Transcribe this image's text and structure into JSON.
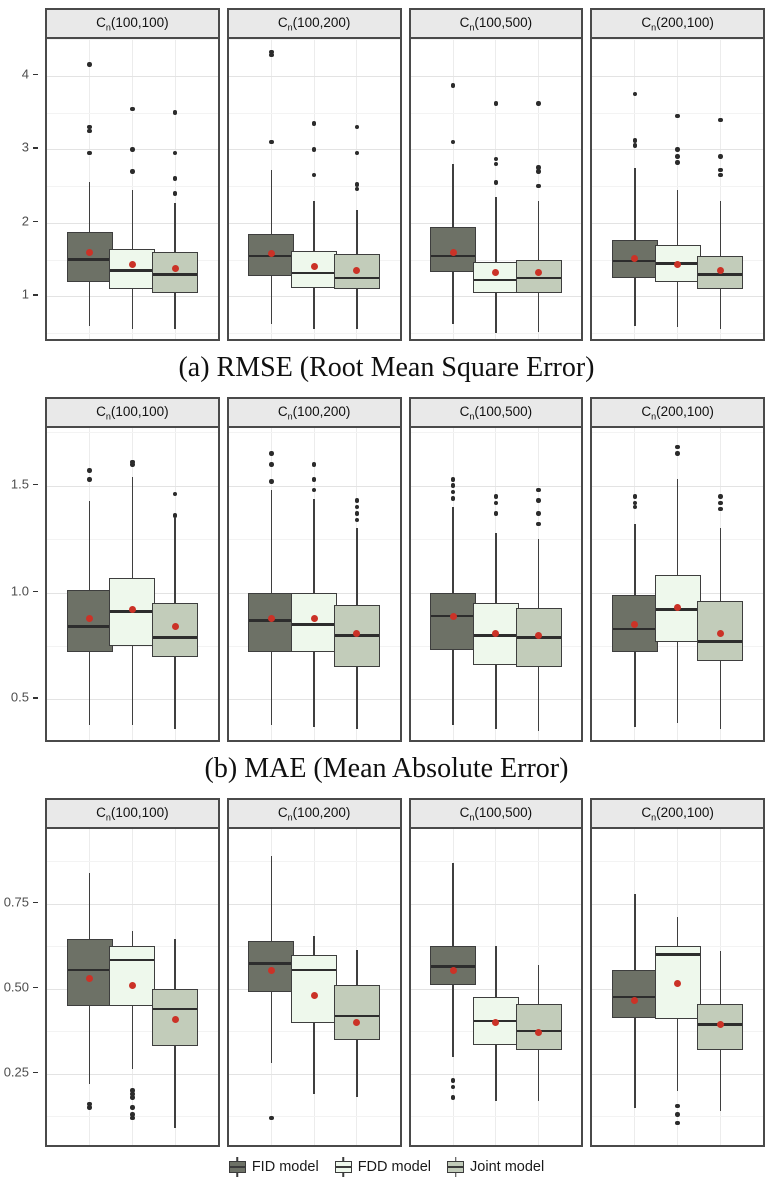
{
  "colors": {
    "fid_fill": "#6d7166",
    "fdd_fill": "#eef8ec",
    "joint_fill": "#c2ccba",
    "box_border": "#3e3e3e",
    "median_line": "#2d2d2d",
    "mean_dot": "#cb3227",
    "outlier_dot": "#2b2b2b",
    "strip_bg": "#e9e9e9",
    "facet_border": "#4a4a4a",
    "grid_major": "#e3e3e3",
    "grid_minor": "#f3f3f3",
    "tick_label": "#4d4d4d"
  },
  "legend": {
    "items": [
      {
        "label": "FID model",
        "fill": "#6d7166"
      },
      {
        "label": "FDD model",
        "fill": "#eef8ec"
      },
      {
        "label": "Joint model",
        "fill": "#c2ccba"
      }
    ]
  },
  "chart_data": [
    {
      "id": "a",
      "type": "box",
      "caption": "(a) RMSE (Root Mean Square Error)",
      "ylim": [
        0.42,
        4.5
      ],
      "yticks": [
        {
          "v": 1,
          "label": "1"
        },
        {
          "v": 2,
          "label": "2"
        },
        {
          "v": 3,
          "label": "3"
        },
        {
          "v": 4,
          "label": "4"
        }
      ],
      "series_names": [
        "FID model",
        "FDD model",
        "Joint model"
      ],
      "facets": [
        {
          "label_base": "C",
          "label_sub": "n",
          "label_args": "(100,100)",
          "boxes": [
            {
              "series": "FID model",
              "lo": 0.6,
              "q1": 1.2,
              "med": 1.5,
              "q3": 1.88,
              "hi": 2.55,
              "mean": 1.6,
              "outliers": [
                2.95,
                3.25,
                3.3,
                4.15
              ]
            },
            {
              "series": "FDD model",
              "lo": 0.55,
              "q1": 1.1,
              "med": 1.35,
              "q3": 1.65,
              "hi": 2.45,
              "mean": 1.44,
              "outliers": [
                2.7,
                3.0,
                3.55
              ]
            },
            {
              "series": "Joint model",
              "lo": 0.55,
              "q1": 1.05,
              "med": 1.3,
              "q3": 1.6,
              "hi": 2.27,
              "mean": 1.38,
              "outliers": [
                2.4,
                2.6,
                2.95,
                3.5
              ]
            }
          ]
        },
        {
          "label_base": "C",
          "label_sub": "n",
          "label_args": "(100,200)",
          "boxes": [
            {
              "series": "FID model",
              "lo": 0.62,
              "q1": 1.28,
              "med": 1.55,
              "q3": 1.85,
              "hi": 2.72,
              "mean": 1.58,
              "outliers": [
                3.1,
                4.28,
                4.32
              ]
            },
            {
              "series": "FDD model",
              "lo": 0.55,
              "q1": 1.12,
              "med": 1.32,
              "q3": 1.62,
              "hi": 2.3,
              "mean": 1.4,
              "outliers": [
                2.65,
                3.0,
                3.35
              ]
            },
            {
              "series": "Joint model",
              "lo": 0.55,
              "q1": 1.1,
              "med": 1.25,
              "q3": 1.57,
              "hi": 2.18,
              "mean": 1.35,
              "outliers": [
                2.46,
                2.52,
                2.95,
                3.3
              ]
            }
          ]
        },
        {
          "label_base": "C",
          "label_sub": "n",
          "label_args": "(100,500)",
          "boxes": [
            {
              "series": "FID model",
              "lo": 0.62,
              "q1": 1.33,
              "med": 1.55,
              "q3": 1.95,
              "hi": 2.8,
              "mean": 1.6,
              "outliers": [
                3.1,
                3.87
              ]
            },
            {
              "series": "FDD model",
              "lo": 0.5,
              "q1": 1.05,
              "med": 1.22,
              "q3": 1.47,
              "hi": 2.35,
              "mean": 1.33,
              "outliers": [
                2.55,
                2.8,
                2.87,
                3.62
              ]
            },
            {
              "series": "Joint model",
              "lo": 0.52,
              "q1": 1.05,
              "med": 1.25,
              "q3": 1.5,
              "hi": 2.3,
              "mean": 1.33,
              "outliers": [
                2.5,
                2.7,
                2.75,
                3.62
              ]
            }
          ]
        },
        {
          "label_base": "C",
          "label_sub": "n",
          "label_args": "(200,100)",
          "boxes": [
            {
              "series": "FID model",
              "lo": 0.6,
              "q1": 1.25,
              "med": 1.48,
              "q3": 1.77,
              "hi": 2.75,
              "mean": 1.52,
              "outliers": [
                3.05,
                3.12,
                3.75
              ]
            },
            {
              "series": "FDD model",
              "lo": 0.58,
              "q1": 1.2,
              "med": 1.45,
              "q3": 1.7,
              "hi": 2.45,
              "mean": 1.44,
              "outliers": [
                2.82,
                2.9,
                3.0,
                3.45
              ]
            },
            {
              "series": "Joint model",
              "lo": 0.55,
              "q1": 1.1,
              "med": 1.3,
              "q3": 1.55,
              "hi": 2.3,
              "mean": 1.35,
              "outliers": [
                2.65,
                2.72,
                2.9,
                3.4
              ]
            }
          ]
        }
      ]
    },
    {
      "id": "b",
      "type": "box",
      "caption": "(b) MAE (Mean Absolute Error)",
      "ylim": [
        0.31,
        1.77
      ],
      "yticks": [
        {
          "v": 0.5,
          "label": "0.5"
        },
        {
          "v": 1.0,
          "label": "1.0"
        },
        {
          "v": 1.5,
          "label": "1.5"
        }
      ],
      "series_names": [
        "FID model",
        "FDD model",
        "Joint model"
      ],
      "facets": [
        {
          "label_base": "C",
          "label_sub": "n",
          "label_args": "(100,100)",
          "boxes": [
            {
              "series": "FID model",
              "lo": 0.38,
              "q1": 0.72,
              "med": 0.84,
              "q3": 1.01,
              "hi": 1.43,
              "mean": 0.88,
              "outliers": [
                1.53,
                1.57
              ]
            },
            {
              "series": "FDD model",
              "lo": 0.38,
              "q1": 0.75,
              "med": 0.91,
              "q3": 1.07,
              "hi": 1.54,
              "mean": 0.92,
              "outliers": [
                1.6,
                1.61
              ]
            },
            {
              "series": "Joint model",
              "lo": 0.36,
              "q1": 0.7,
              "med": 0.79,
              "q3": 0.95,
              "hi": 1.35,
              "mean": 0.84,
              "outliers": [
                1.36,
                1.46
              ]
            }
          ]
        },
        {
          "label_base": "C",
          "label_sub": "n",
          "label_args": "(100,200)",
          "boxes": [
            {
              "series": "FID model",
              "lo": 0.38,
              "q1": 0.72,
              "med": 0.87,
              "q3": 1.0,
              "hi": 1.48,
              "mean": 0.88,
              "outliers": [
                1.52,
                1.6,
                1.65
              ]
            },
            {
              "series": "FDD model",
              "lo": 0.37,
              "q1": 0.72,
              "med": 0.85,
              "q3": 1.0,
              "hi": 1.44,
              "mean": 0.88,
              "outliers": [
                1.48,
                1.53,
                1.6
              ]
            },
            {
              "series": "Joint model",
              "lo": 0.36,
              "q1": 0.65,
              "med": 0.8,
              "q3": 0.94,
              "hi": 1.3,
              "mean": 0.81,
              "outliers": [
                1.34,
                1.37,
                1.4,
                1.43
              ]
            }
          ]
        },
        {
          "label_base": "C",
          "label_sub": "n",
          "label_args": "(100,500)",
          "boxes": [
            {
              "series": "FID model",
              "lo": 0.38,
              "q1": 0.73,
              "med": 0.89,
              "q3": 1.0,
              "hi": 1.4,
              "mean": 0.89,
              "outliers": [
                1.44,
                1.47,
                1.5,
                1.53
              ]
            },
            {
              "series": "FDD model",
              "lo": 0.36,
              "q1": 0.66,
              "med": 0.8,
              "q3": 0.95,
              "hi": 1.28,
              "mean": 0.81,
              "outliers": [
                1.37,
                1.42,
                1.45
              ]
            },
            {
              "series": "Joint model",
              "lo": 0.35,
              "q1": 0.65,
              "med": 0.79,
              "q3": 0.93,
              "hi": 1.25,
              "mean": 0.8,
              "outliers": [
                1.32,
                1.37,
                1.43,
                1.48
              ]
            }
          ]
        },
        {
          "label_base": "C",
          "label_sub": "n",
          "label_args": "(200,100)",
          "boxes": [
            {
              "series": "FID model",
              "lo": 0.37,
              "q1": 0.72,
              "med": 0.83,
              "q3": 0.99,
              "hi": 1.32,
              "mean": 0.85,
              "outliers": [
                1.4,
                1.42,
                1.45
              ]
            },
            {
              "series": "FDD model",
              "lo": 0.39,
              "q1": 0.77,
              "med": 0.92,
              "q3": 1.08,
              "hi": 1.53,
              "mean": 0.93,
              "outliers": [
                1.65,
                1.68
              ]
            },
            {
              "series": "Joint model",
              "lo": 0.36,
              "q1": 0.68,
              "med": 0.77,
              "q3": 0.96,
              "hi": 1.3,
              "mean": 0.81,
              "outliers": [
                1.39,
                1.42,
                1.45
              ]
            }
          ]
        }
      ]
    },
    {
      "id": "c",
      "type": "box",
      "caption": "",
      "ylim": [
        0.04,
        0.97
      ],
      "yticks": [
        {
          "v": 0.25,
          "label": "0.25"
        },
        {
          "v": 0.5,
          "label": "0.50"
        },
        {
          "v": 0.75,
          "label": "0.75"
        }
      ],
      "series_names": [
        "FID model",
        "FDD model",
        "Joint model"
      ],
      "facets": [
        {
          "label_base": "C",
          "label_sub": "n",
          "label_args": "(100,100)",
          "boxes": [
            {
              "series": "FID model",
              "lo": 0.22,
              "q1": 0.45,
              "med": 0.555,
              "q3": 0.645,
              "hi": 0.84,
              "mean": 0.53,
              "outliers": [
                0.15,
                0.16
              ]
            },
            {
              "series": "FDD model",
              "lo": 0.265,
              "q1": 0.45,
              "med": 0.585,
              "q3": 0.625,
              "hi": 0.67,
              "mean": 0.51,
              "outliers": [
                0.12,
                0.13,
                0.15,
                0.18,
                0.19,
                0.2
              ]
            },
            {
              "series": "Joint model",
              "lo": 0.09,
              "q1": 0.33,
              "med": 0.44,
              "q3": 0.5,
              "hi": 0.645,
              "mean": 0.41,
              "outliers": []
            }
          ]
        },
        {
          "label_base": "C",
          "label_sub": "n",
          "label_args": "(100,200)",
          "boxes": [
            {
              "series": "FID model",
              "lo": 0.28,
              "q1": 0.49,
              "med": 0.575,
              "q3": 0.64,
              "hi": 0.89,
              "mean": 0.555,
              "outliers": [
                0.12
              ]
            },
            {
              "series": "FDD model",
              "lo": 0.19,
              "q1": 0.4,
              "med": 0.555,
              "q3": 0.6,
              "hi": 0.655,
              "mean": 0.48,
              "outliers": []
            },
            {
              "series": "Joint model",
              "lo": 0.18,
              "q1": 0.35,
              "med": 0.42,
              "q3": 0.51,
              "hi": 0.615,
              "mean": 0.4,
              "outliers": []
            }
          ]
        },
        {
          "label_base": "C",
          "label_sub": "n",
          "label_args": "(100,500)",
          "boxes": [
            {
              "series": "FID model",
              "lo": 0.3,
              "q1": 0.51,
              "med": 0.565,
              "q3": 0.625,
              "hi": 0.87,
              "mean": 0.555,
              "outliers": [
                0.18,
                0.21,
                0.23
              ]
            },
            {
              "series": "FDD model",
              "lo": 0.17,
              "q1": 0.335,
              "med": 0.405,
              "q3": 0.475,
              "hi": 0.625,
              "mean": 0.4,
              "outliers": []
            },
            {
              "series": "Joint model",
              "lo": 0.17,
              "q1": 0.32,
              "med": 0.375,
              "q3": 0.455,
              "hi": 0.57,
              "mean": 0.37,
              "outliers": []
            }
          ]
        },
        {
          "label_base": "C",
          "label_sub": "n",
          "label_args": "(200,100)",
          "boxes": [
            {
              "series": "FID model",
              "lo": 0.15,
              "q1": 0.415,
              "med": 0.475,
              "q3": 0.555,
              "hi": 0.78,
              "mean": 0.465,
              "outliers": []
            },
            {
              "series": "FDD model",
              "lo": 0.2,
              "q1": 0.41,
              "med": 0.6,
              "q3": 0.625,
              "hi": 0.71,
              "mean": 0.515,
              "outliers": [
                0.105,
                0.13,
                0.155
              ]
            },
            {
              "series": "Joint model",
              "lo": 0.14,
              "q1": 0.32,
              "med": 0.395,
              "q3": 0.455,
              "hi": 0.61,
              "mean": 0.395,
              "outliers": []
            }
          ]
        }
      ]
    }
  ]
}
